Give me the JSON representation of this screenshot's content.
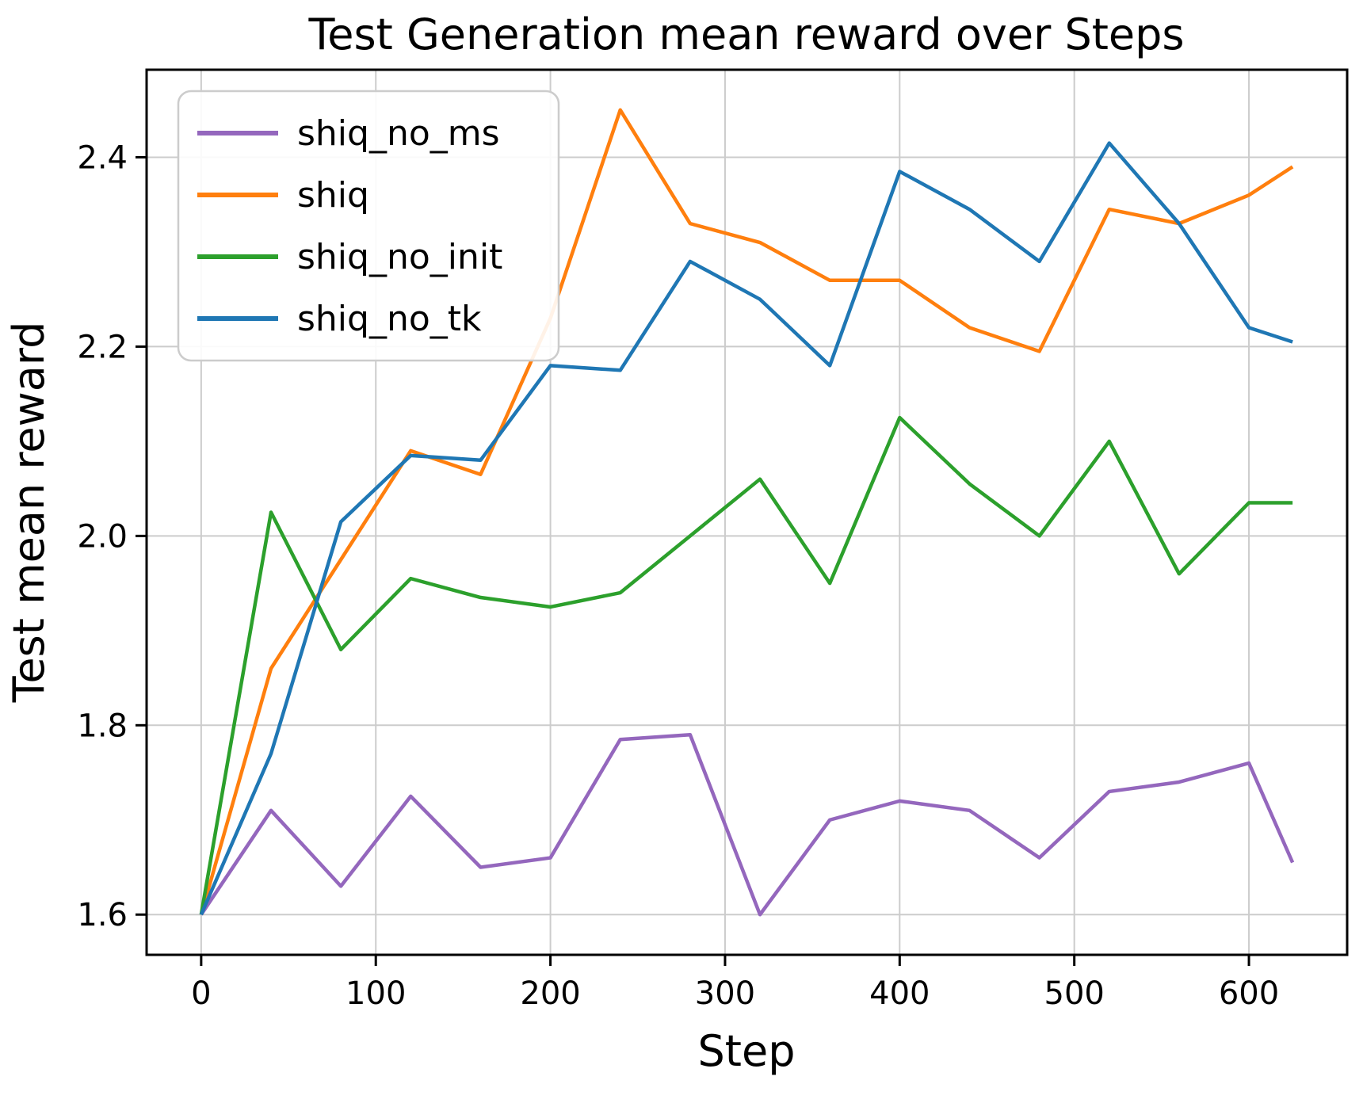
{
  "chart_data": {
    "type": "line",
    "title": "Test Generation mean reward over Steps",
    "xlabel": "Step",
    "ylabel": "Test mean reward",
    "grid": true,
    "grid_color": "#cccccc",
    "spine_color": "#000000",
    "legend_position": "upper left",
    "xlim": [
      -31.25,
      656.25
    ],
    "ylim": [
      1.5575,
      2.4925
    ],
    "xticks": [
      0,
      100,
      200,
      300,
      400,
      500,
      600
    ],
    "yticks": [
      1.6,
      1.8,
      2.0,
      2.2,
      2.4
    ],
    "x": [
      0,
      40,
      80,
      120,
      160,
      200,
      240,
      280,
      320,
      360,
      400,
      440,
      480,
      520,
      560,
      600,
      625
    ],
    "series": [
      {
        "name": "shiq_no_ms",
        "color": "#9467bd",
        "values": [
          1.6,
          1.71,
          1.63,
          1.725,
          1.65,
          1.66,
          1.785,
          1.79,
          1.6,
          1.7,
          1.72,
          1.71,
          1.66,
          1.73,
          1.74,
          1.76,
          1.655
        ]
      },
      {
        "name": "shiq",
        "color": "#ff7f0e",
        "values": [
          1.6,
          1.86,
          1.975,
          2.09,
          2.065,
          2.23,
          2.45,
          2.33,
          2.31,
          2.27,
          2.27,
          2.22,
          2.195,
          2.345,
          2.33,
          2.36,
          2.39
        ]
      },
      {
        "name": "shiq_no_init",
        "color": "#2ca02c",
        "values": [
          1.6,
          2.025,
          1.88,
          1.955,
          1.935,
          1.925,
          1.94,
          2.0,
          2.06,
          1.95,
          2.125,
          2.055,
          2.0,
          2.1,
          1.96,
          2.035,
          2.035
        ]
      },
      {
        "name": "shiq_no_tk",
        "color": "#1f77b4",
        "values": [
          1.6,
          1.77,
          2.015,
          2.085,
          2.08,
          2.18,
          2.175,
          2.29,
          2.25,
          2.18,
          2.385,
          2.345,
          2.29,
          2.415,
          2.33,
          2.22,
          2.205
        ]
      }
    ]
  }
}
